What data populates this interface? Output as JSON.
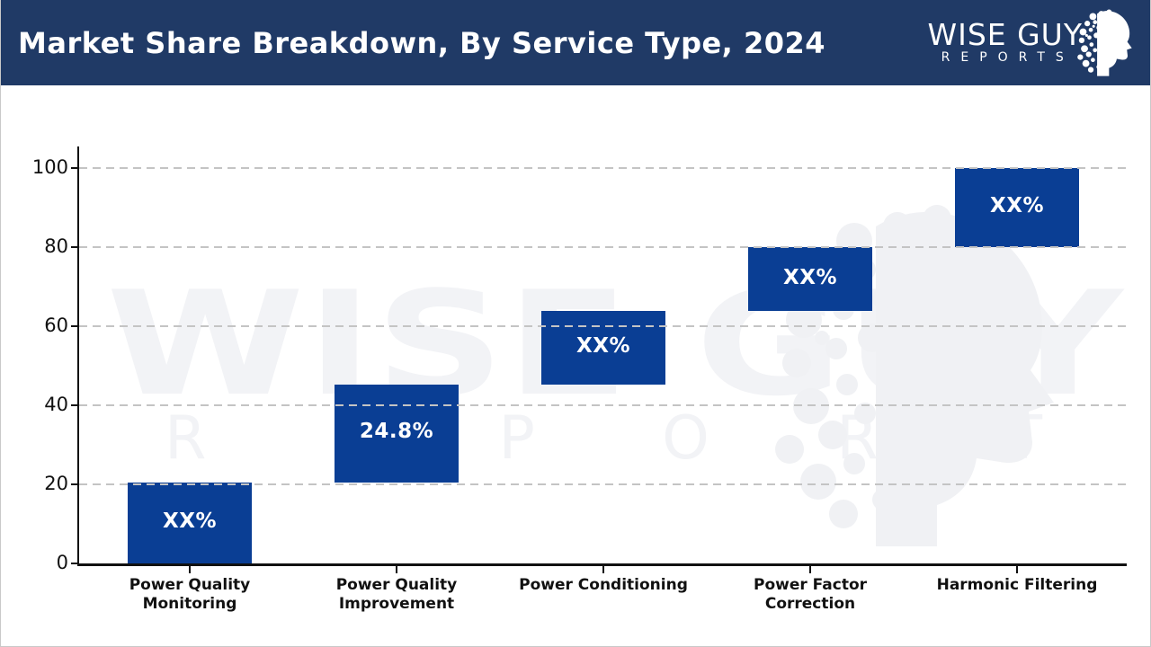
{
  "header": {
    "title": "Market Share Breakdown, By Service Type, 2024",
    "logo": {
      "line1": "WISE GUY",
      "line2": "REPORTS",
      "icon": "head-profile-dots-icon"
    }
  },
  "watermark": {
    "line1": "WISE GUY",
    "line2": "R E P O R T S",
    "icon": "head-profile-dots-icon"
  },
  "colors": {
    "header_bg": "#203a66",
    "bar": "#0a3e94",
    "bar_label": "#ffffff",
    "grid": "#c4c4c4",
    "axis": "#111111",
    "watermark": "#f2f3f6"
  },
  "chart_data": {
    "type": "bar",
    "subtype": "waterfall",
    "title": "Market Share Breakdown, By Service Type, 2024",
    "categories": [
      "Power Quality Monitoring",
      "Power Quality Improvement",
      "Power Conditioning",
      "Power Factor Correction",
      "Harmonic Filtering"
    ],
    "segments": [
      {
        "category": "Power Quality Monitoring",
        "start": 0,
        "end": 20.5,
        "label": "XX%"
      },
      {
        "category": "Power Quality Improvement",
        "start": 20.5,
        "end": 45.3,
        "label": "24.8%"
      },
      {
        "category": "Power Conditioning",
        "start": 45.3,
        "end": 63.8,
        "label": "XX%"
      },
      {
        "category": "Power Factor Correction",
        "start": 63.8,
        "end": 80,
        "label": "XX%"
      },
      {
        "category": "Harmonic Filtering",
        "start": 80,
        "end": 100,
        "label": "XX%"
      }
    ],
    "xlabel": "",
    "ylabel": "",
    "ylim": [
      0,
      100
    ],
    "yticks": [
      0,
      20,
      40,
      60,
      80,
      100
    ],
    "grid": "horizontal dashed, drawn above bars",
    "legend": "none"
  }
}
